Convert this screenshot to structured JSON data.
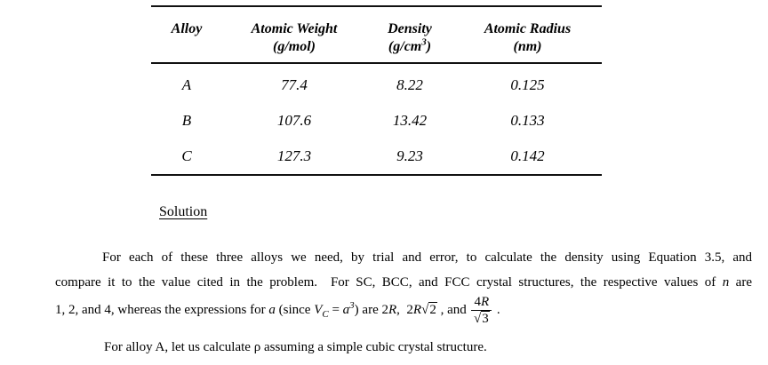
{
  "table": {
    "columns": [
      {
        "title": "Alloy",
        "unit": ""
      },
      {
        "title": "Atomic Weight",
        "unit": "(g/mol)"
      },
      {
        "title": "Density",
        "unit_pre": "(g/cm",
        "unit_sup": "3",
        "unit_post": ")"
      },
      {
        "title": "Atomic Radius",
        "unit": "(nm)"
      }
    ],
    "rows": [
      {
        "alloy": "A",
        "atomic_weight": "77.4",
        "density": "8.22",
        "atomic_radius": "0.125"
      },
      {
        "alloy": "B",
        "atomic_weight": "107.6",
        "density": "13.42",
        "atomic_radius": "0.133"
      },
      {
        "alloy": "C",
        "atomic_weight": "127.3",
        "density": "9.23",
        "atomic_radius": "0.142"
      }
    ]
  },
  "solution": {
    "heading": "Solution",
    "para1": {
      "line1": "For each of these three alloys we need, by trial and error, to calculate the density using Equation 3.5, and",
      "line2_pre": "compare it to the value cited in the problem.  For SC, BCC, and FCC crystal structures, the respective values of ",
      "line2_var": "n",
      "line2_post": " are",
      "line3": {
        "t1": "1, 2, and 4, whereas the expressions for ",
        "var_a1": "a",
        "t2": " (since ",
        "var_V": "V",
        "sub_C": "C",
        "t3": " = ",
        "var_a2": "a",
        "sup_3": "3",
        "t4": ") are 2",
        "var_R1": "R",
        "t5": ",  2",
        "var_R2": "R",
        "sqrt_sym": "√",
        "rad_2": "2",
        "t6": " , and ",
        "frac_num_digit": "4",
        "frac_num_var": "R",
        "frac_den_sqrt": "√",
        "frac_den_rad": "3",
        "t7": " ."
      }
    },
    "para2_pre": "For alloy A, let us calculate ",
    "para2_rho": "ρ",
    "para2_post": " assuming a simple cubic crystal structure."
  }
}
